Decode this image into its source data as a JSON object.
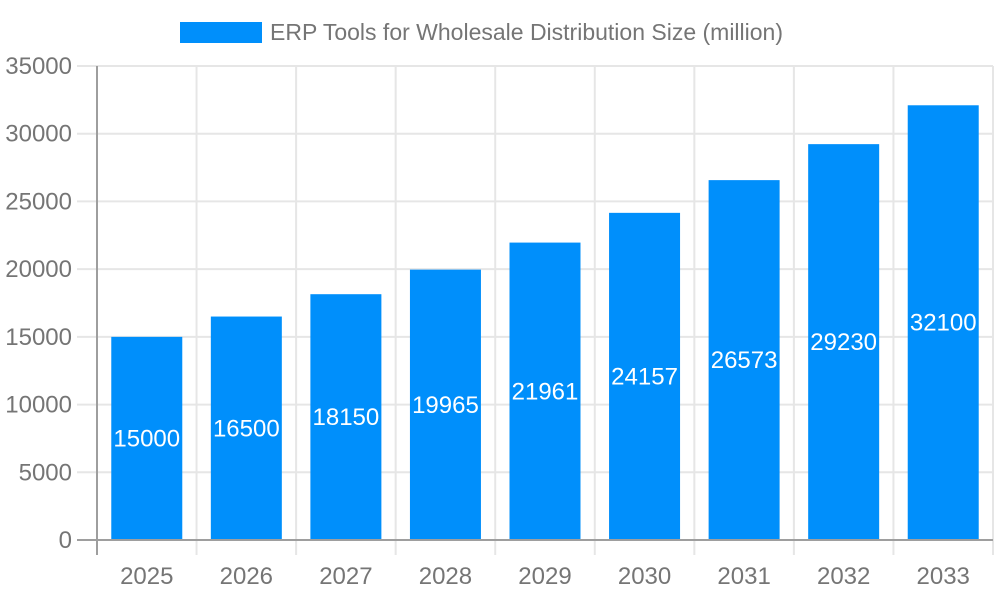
{
  "legend": {
    "series_label": "ERP Tools for Wholesale Distribution Size (million)"
  },
  "chart_data": {
    "type": "bar",
    "title": "ERP Tools for Wholesale Distribution Size (million)",
    "categories": [
      "2025",
      "2026",
      "2027",
      "2028",
      "2029",
      "2030",
      "2031",
      "2032",
      "2033"
    ],
    "values": [
      15000,
      16500,
      18150,
      19965,
      21961,
      24157,
      26573,
      29230,
      32100
    ],
    "xlabel": "",
    "ylabel": "",
    "ylim": [
      0,
      35000
    ],
    "ytick_step": 5000,
    "ytick_labels": [
      "0",
      "5000",
      "10000",
      "15000",
      "20000",
      "25000",
      "30000",
      "35000"
    ],
    "grid": true,
    "legend_position": "top",
    "value_labels_inside_bars": true
  },
  "colors": {
    "bar": "#008ffb",
    "label_text": "#757575",
    "value_label_text": "#ffffff",
    "gridline": "#e6e6e6",
    "axis": "#9e9e9e",
    "background": "#ffffff"
  }
}
